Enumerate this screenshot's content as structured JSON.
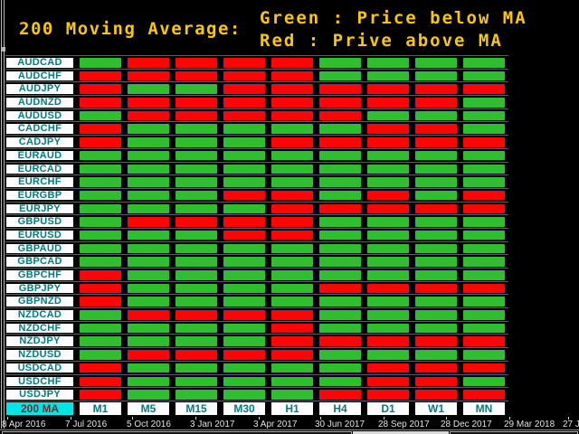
{
  "title": "200 Moving Average:",
  "legend": {
    "green": "Green : Price below MA",
    "red": "Red : Prive above MA"
  },
  "corner_label": "200 MA",
  "timeframes": [
    "M1",
    "M5",
    "M15",
    "M30",
    "H1",
    "H4",
    "D1",
    "W1",
    "MN"
  ],
  "colors": {
    "green": "#2ebe2e",
    "red": "#fb0505",
    "header_text": "#f7c708",
    "label_text": "#007d7d",
    "label_bg": "#fcfcfc",
    "corner_bg": "#00e5e5",
    "corner_text": "#7b2828",
    "background": "#000000"
  },
  "rows": [
    {
      "pair": "AUDCAD",
      "cells": [
        "G",
        "R",
        "R",
        "R",
        "R",
        "G",
        "G",
        "G",
        "G"
      ]
    },
    {
      "pair": "AUDCHF",
      "cells": [
        "R",
        "R",
        "R",
        "R",
        "R",
        "G",
        "G",
        "G",
        "G"
      ]
    },
    {
      "pair": "AUDJPY",
      "cells": [
        "R",
        "G",
        "G",
        "R",
        "R",
        "R",
        "R",
        "R",
        "R"
      ]
    },
    {
      "pair": "AUDNZD",
      "cells": [
        "R",
        "R",
        "R",
        "R",
        "R",
        "R",
        "R",
        "R",
        "G"
      ]
    },
    {
      "pair": "AUDUSD",
      "cells": [
        "G",
        "R",
        "R",
        "R",
        "R",
        "R",
        "G",
        "G",
        "G"
      ]
    },
    {
      "pair": "CADCHF",
      "cells": [
        "R",
        "G",
        "G",
        "G",
        "G",
        "G",
        "R",
        "R",
        "G"
      ]
    },
    {
      "pair": "CADJPY",
      "cells": [
        "R",
        "G",
        "G",
        "G",
        "R",
        "R",
        "R",
        "R",
        "R"
      ]
    },
    {
      "pair": "EURAUD",
      "cells": [
        "G",
        "G",
        "G",
        "G",
        "G",
        "G",
        "G",
        "G",
        "G"
      ]
    },
    {
      "pair": "EURCAD",
      "cells": [
        "G",
        "G",
        "G",
        "G",
        "G",
        "G",
        "G",
        "G",
        "G"
      ]
    },
    {
      "pair": "EURCHF",
      "cells": [
        "G",
        "G",
        "G",
        "G",
        "G",
        "G",
        "G",
        "G",
        "G"
      ]
    },
    {
      "pair": "EURGBP",
      "cells": [
        "G",
        "G",
        "G",
        "R",
        "R",
        "G",
        "R",
        "G",
        "R"
      ]
    },
    {
      "pair": "EURJPY",
      "cells": [
        "G",
        "G",
        "G",
        "G",
        "R",
        "R",
        "R",
        "R",
        "R"
      ]
    },
    {
      "pair": "GBPUSD",
      "cells": [
        "G",
        "R",
        "R",
        "R",
        "R",
        "G",
        "G",
        "G",
        "G"
      ]
    },
    {
      "pair": "EURUSD",
      "cells": [
        "G",
        "G",
        "G",
        "R",
        "R",
        "G",
        "G",
        "G",
        "G"
      ]
    },
    {
      "pair": "GBPAUD",
      "cells": [
        "G",
        "G",
        "G",
        "G",
        "G",
        "G",
        "G",
        "G",
        "G"
      ]
    },
    {
      "pair": "GBPCAD",
      "cells": [
        "G",
        "G",
        "G",
        "G",
        "G",
        "G",
        "G",
        "G",
        "G"
      ]
    },
    {
      "pair": "GBPCHF",
      "cells": [
        "R",
        "G",
        "G",
        "G",
        "G",
        "G",
        "G",
        "G",
        "G"
      ]
    },
    {
      "pair": "GBPJPY",
      "cells": [
        "R",
        "G",
        "G",
        "G",
        "G",
        "R",
        "R",
        "R",
        "R"
      ]
    },
    {
      "pair": "GBPNZD",
      "cells": [
        "R",
        "G",
        "G",
        "G",
        "G",
        "G",
        "G",
        "G",
        "G"
      ]
    },
    {
      "pair": "NZDCAD",
      "cells": [
        "G",
        "R",
        "R",
        "R",
        "R",
        "G",
        "G",
        "G",
        "G"
      ]
    },
    {
      "pair": "NZDCHF",
      "cells": [
        "G",
        "G",
        "G",
        "G",
        "R",
        "G",
        "G",
        "G",
        "G"
      ]
    },
    {
      "pair": "NZDJPY",
      "cells": [
        "G",
        "G",
        "G",
        "G",
        "R",
        "R",
        "R",
        "R",
        "R"
      ]
    },
    {
      "pair": "NZDUSD",
      "cells": [
        "G",
        "R",
        "R",
        "R",
        "R",
        "G",
        "G",
        "G",
        "G"
      ]
    },
    {
      "pair": "USDCAD",
      "cells": [
        "R",
        "G",
        "G",
        "G",
        "G",
        "G",
        "R",
        "R",
        "R"
      ]
    },
    {
      "pair": "USDCHF",
      "cells": [
        "R",
        "G",
        "G",
        "G",
        "G",
        "G",
        "R",
        "R",
        "G"
      ]
    },
    {
      "pair": "USDJPY",
      "cells": [
        "R",
        "G",
        "G",
        "G",
        "G",
        "R",
        "R",
        "R",
        "R"
      ]
    }
  ],
  "timeline": {
    "dates": [
      "8 Apr 2016",
      "7 Jul 2016",
      "5 Oct 2016",
      "3 Jan 2017",
      "3 Apr 2017",
      "30 Jun 2017",
      "28 Sep 2017",
      "28 Dec 2017",
      "29 Mar 2018",
      "27 J"
    ]
  }
}
